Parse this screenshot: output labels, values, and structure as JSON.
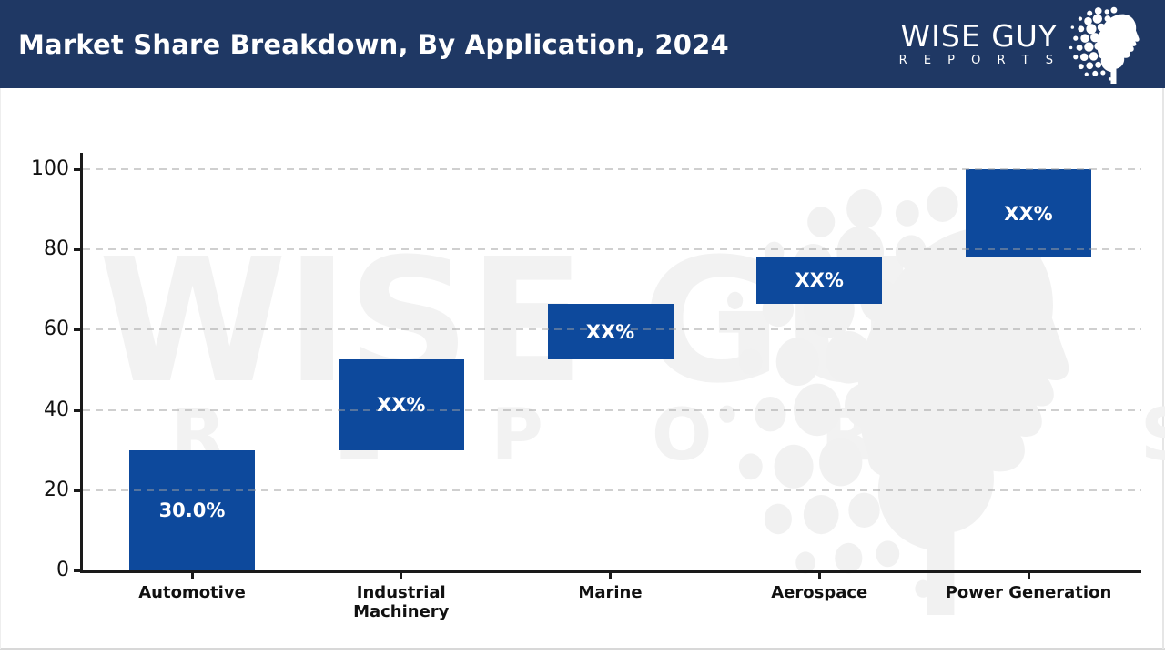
{
  "header": {
    "title": "Market Share Breakdown, By Application, 2024",
    "logo_line1": "WISE GUY",
    "logo_line2": "R E P O R T S",
    "bg_color": "#1f3864"
  },
  "watermark": {
    "line1": "WISE GUY",
    "line2": "R E P O R T S"
  },
  "chart_data": {
    "type": "bar",
    "subtype": "waterfall",
    "title": "Market Share Breakdown, By Application, 2024",
    "bar_color": "#0d499c",
    "grid": "horizontal dashed gridlines drawn above bars",
    "legend": "none",
    "ylim": [
      0,
      104
    ],
    "y_ticks": [
      0,
      20,
      40,
      60,
      80,
      100
    ],
    "categories": [
      "Automotive",
      "Industrial Machinery",
      "Marine",
      "Aerospace",
      "Power Generation"
    ],
    "x_tick_lines": [
      [
        "Automotive"
      ],
      [
        "Industrial",
        "Machinery"
      ],
      [
        "Marine"
      ],
      [
        "Aerospace"
      ],
      [
        "Power Generation"
      ]
    ],
    "segments": [
      {
        "category": "Automotive",
        "start": 0,
        "end": 30,
        "label": "30.0%"
      },
      {
        "category": "Industrial Machinery",
        "start": 30,
        "end": 52.5,
        "label": "XX%"
      },
      {
        "category": "Marine",
        "start": 52.5,
        "end": 66.5,
        "label": "XX%"
      },
      {
        "category": "Aerospace",
        "start": 66.5,
        "end": 78,
        "label": "XX%"
      },
      {
        "category": "Power Generation",
        "start": 78,
        "end": 100,
        "label": "XX%"
      }
    ]
  }
}
